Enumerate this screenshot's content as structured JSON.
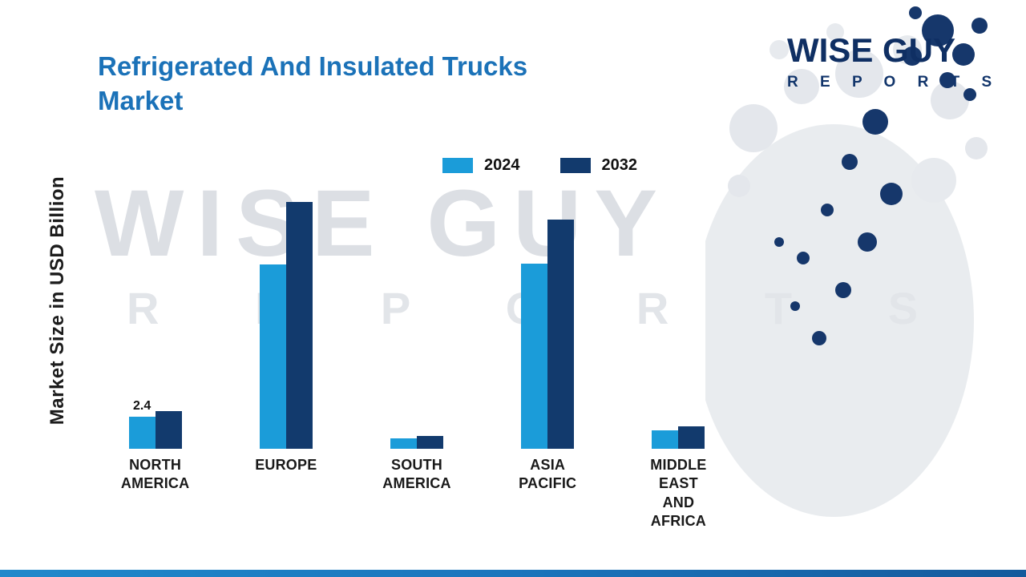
{
  "page": {
    "title": "Refrigerated And Insulated Trucks Market"
  },
  "logo": {
    "line1": "WISE GUY",
    "line2": "R E P O R T S"
  },
  "watermark": {
    "line1": "WISE GUY",
    "line2": "R E P O R T S"
  },
  "colors": {
    "title_blue": "#1b72b8",
    "series_2024": "#1b9cd9",
    "series_2032": "#123a6d",
    "bottom_bar": "#1b75bc",
    "logo_navy": "#12356b",
    "watermark_gray": "#dcdfe4"
  },
  "chart_data": {
    "type": "bar",
    "title": "Refrigerated And Insulated Trucks Market",
    "xlabel": "",
    "ylabel": "Market Size in USD Billion",
    "ylim": [
      0,
      20
    ],
    "grid": false,
    "legend_position": "top",
    "categories": [
      "NORTH AMERICA",
      "EUROPE",
      "SOUTH AMERICA",
      "ASIA PACIFIC",
      "MIDDLE EAST AND AFRICA"
    ],
    "series": [
      {
        "name": "2024",
        "color": "#1b9cd9",
        "values": [
          2.4,
          13.8,
          0.8,
          13.9,
          1.4
        ]
      },
      {
        "name": "2032",
        "color": "#123a6d",
        "values": [
          2.8,
          18.5,
          0.95,
          17.2,
          1.7
        ]
      }
    ],
    "data_labels": [
      {
        "category": "NORTH AMERICA",
        "series": "2024",
        "text": "2.4"
      }
    ]
  }
}
